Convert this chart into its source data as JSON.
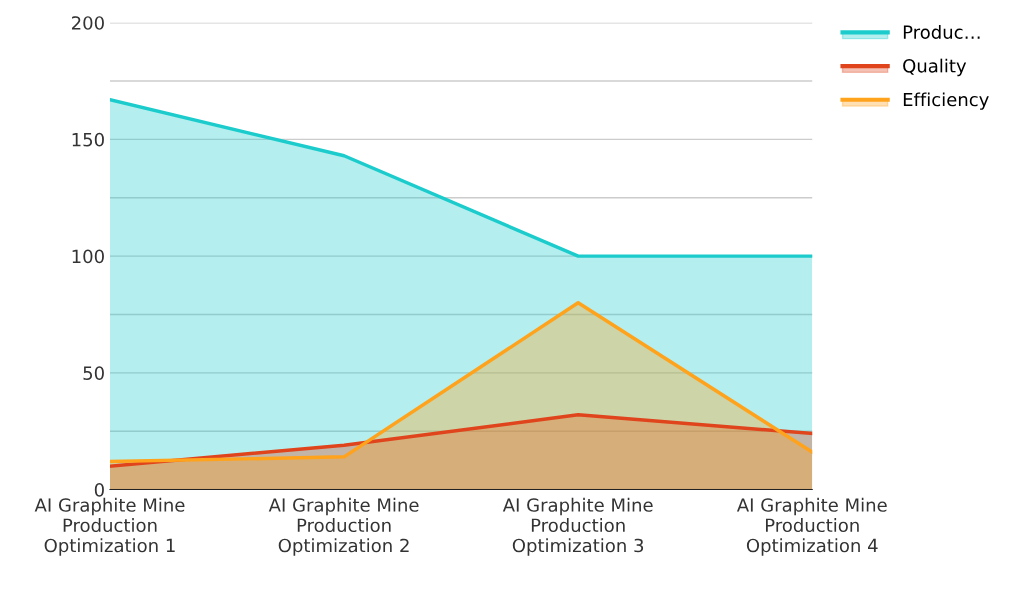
{
  "chart_data": {
    "type": "area",
    "categories": [
      "AI Graphite Mine Production Optimization 1",
      "AI Graphite Mine Production Optimization 2",
      "AI Graphite Mine Production Optimization 3",
      "AI Graphite Mine Production Optimization 4"
    ],
    "series": [
      {
        "name": "Produc…",
        "color": "#1ccccc",
        "values": [
          167,
          143,
          100,
          100
        ]
      },
      {
        "name": "Quality",
        "color": "#e0441c",
        "values": [
          10,
          19,
          32,
          24
        ]
      },
      {
        "name": "Efficiency",
        "color": "#ffa21c",
        "values": [
          12,
          14,
          80,
          16
        ]
      }
    ],
    "ylim": [
      0,
      200
    ],
    "yticks": [
      0,
      {
        "value": 25,
        "label": null
      },
      50,
      {
        "value": 75,
        "label": null
      },
      100,
      {
        "value": 125,
        "label": null
      },
      150,
      {
        "value": 175,
        "label": null
      },
      200
    ],
    "grid": "y",
    "legend": "top right"
  }
}
